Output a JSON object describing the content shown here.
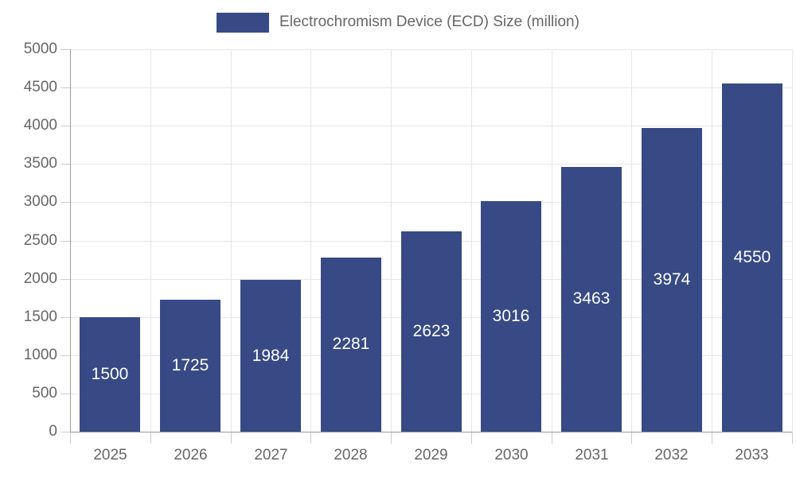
{
  "chart_data": {
    "type": "bar",
    "title": "Electrochromism Device (ECD) Size (million)",
    "categories": [
      "2025",
      "2026",
      "2027",
      "2028",
      "2029",
      "2030",
      "2031",
      "2032",
      "2033"
    ],
    "series": [
      {
        "name": "Electrochromism Device (ECD) Size (million)",
        "values": [
          1500,
          1725,
          1984,
          2281,
          2623,
          3016,
          3463,
          3974,
          4550
        ]
      }
    ],
    "values": [
      1500,
      1725,
      1984,
      2281,
      2623,
      3016,
      3463,
      3974,
      4550
    ],
    "data_labels": [
      1500,
      1725,
      1984,
      2281,
      2623,
      3016,
      3463,
      3974,
      4550
    ],
    "xlabel": "",
    "ylabel": "",
    "ylim": [
      0,
      5000
    ],
    "ytick_step": 500,
    "yticks": [
      0,
      500,
      1000,
      1500,
      2000,
      2500,
      3000,
      3500,
      4000,
      4500,
      5000
    ],
    "grid": true,
    "legend_position": "top",
    "colors": {
      "bar": "#374a85",
      "data_label_text": "#ffffff",
      "axis_text": "#666666",
      "legend_text": "#666666",
      "grid_line": "#e6e6e6",
      "axis_line": "#999999",
      "tick": "#cccccc",
      "background": "#ffffff"
    }
  }
}
